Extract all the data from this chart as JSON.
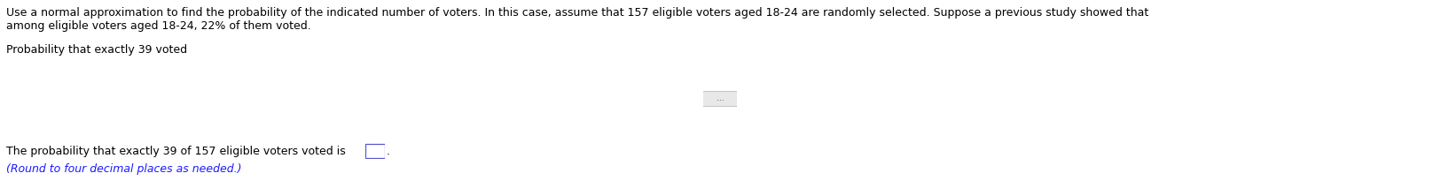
{
  "line1": "Use a normal approximation to find the probability of the indicated number of voters. In this case, assume that 157 eligible voters aged 18-24 are randomly selected. Suppose a previous study showed that",
  "line2": "among eligible voters aged 18-24, 22% of them voted.",
  "line3": "Probability that exactly 39 voted",
  "bottom_line1": "The probability that exactly 39 of 157 eligible voters voted is",
  "bottom_line2": "(Round to four decimal places as needed.)",
  "text_color_black": "#000000",
  "text_color_blue": "#1a1aff",
  "separator_color": "#d4a0a0",
  "background_color": "#FFFFFF",
  "font_size_main": 9.0,
  "btn_text": "...",
  "btn_color": "#e8e8e8",
  "btn_border": "#aaaaaa",
  "box_border": "#5555cc"
}
